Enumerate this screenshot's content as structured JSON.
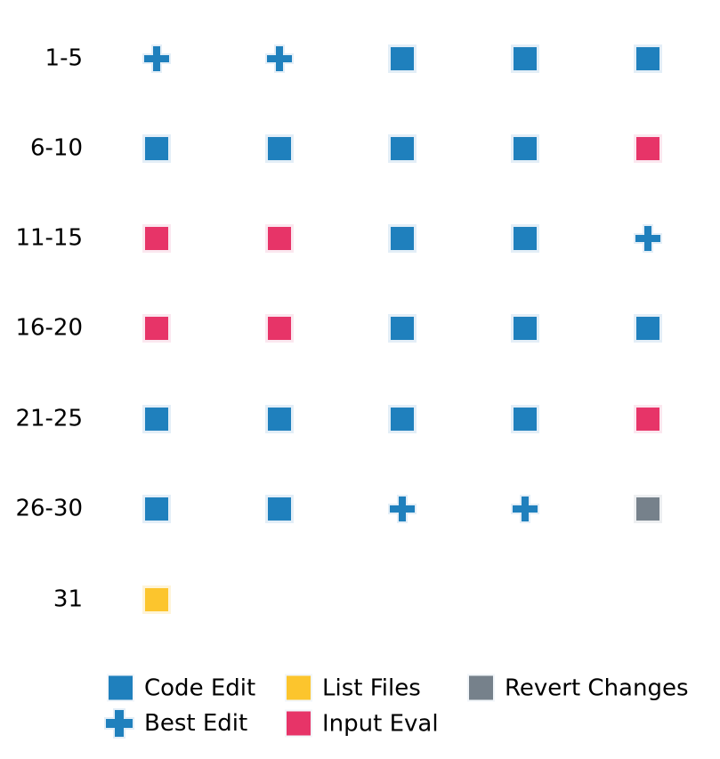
{
  "chart_data": {
    "type": "scatter",
    "title": "",
    "xlabel": "",
    "ylabel": "",
    "grid": false,
    "legend_position": "bottom",
    "actions": {
      "code_edit": {
        "label": "Code Edit",
        "marker": "square",
        "color": "#1f80bd"
      },
      "list_files": {
        "label": "List Files",
        "marker": "square",
        "color": "#fcc52d"
      },
      "revert_changes": {
        "label": "Revert Changes",
        "marker": "square",
        "color": "#76818b"
      },
      "best_edit": {
        "label": "Best Edit",
        "marker": "plus",
        "color": "#1f80bd"
      },
      "input_eval": {
        "label": "Input Eval",
        "marker": "square",
        "color": "#e73468"
      }
    },
    "rows": [
      {
        "label": "1-5",
        "cells": [
          "best_edit",
          "best_edit",
          "code_edit",
          "code_edit",
          "code_edit"
        ]
      },
      {
        "label": "6-10",
        "cells": [
          "code_edit",
          "code_edit",
          "code_edit",
          "code_edit",
          "input_eval"
        ]
      },
      {
        "label": "11-15",
        "cells": [
          "input_eval",
          "input_eval",
          "code_edit",
          "code_edit",
          "best_edit"
        ]
      },
      {
        "label": "16-20",
        "cells": [
          "input_eval",
          "input_eval",
          "code_edit",
          "code_edit",
          "code_edit"
        ]
      },
      {
        "label": "21-25",
        "cells": [
          "code_edit",
          "code_edit",
          "code_edit",
          "code_edit",
          "input_eval"
        ]
      },
      {
        "label": "26-30",
        "cells": [
          "code_edit",
          "code_edit",
          "best_edit",
          "best_edit",
          "revert_changes"
        ]
      },
      {
        "label": "31",
        "cells": [
          "list_files"
        ]
      }
    ],
    "legend_order": [
      "code_edit",
      "list_files",
      "revert_changes",
      "best_edit",
      "input_eval"
    ]
  }
}
